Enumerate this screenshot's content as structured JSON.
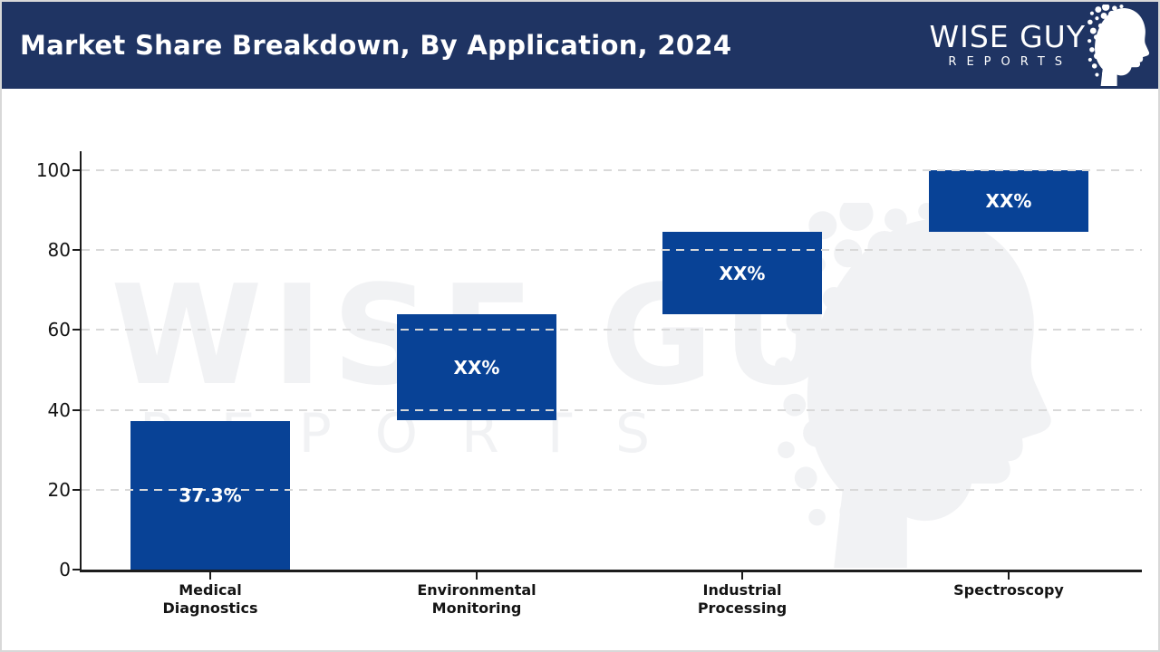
{
  "header": {
    "title": "Market Share Breakdown, By Application, 2024",
    "background": "#1f3463",
    "logo": {
      "name": "WISE GUY",
      "subtitle": "REPORTS"
    }
  },
  "watermark": {
    "name": "WISE GUY",
    "subtitle": "REPORTS"
  },
  "chart_data": {
    "type": "bar",
    "subtype": "waterfall",
    "title": "Market Share Breakdown, By Application, 2024",
    "categories": [
      [
        "Medical",
        "Diagnostics"
      ],
      [
        "Environmental",
        "Monitoring"
      ],
      [
        "Industrial",
        "Processing"
      ],
      [
        "Spectroscopy"
      ]
    ],
    "series": [
      {
        "name": "Market share (%)",
        "segments": [
          [
            0,
            37.3
          ],
          [
            37.3,
            64
          ],
          [
            64,
            84.5
          ],
          [
            84.5,
            100
          ]
        ],
        "labels": [
          "37.3%",
          "XX%",
          "XX%",
          "XX%"
        ]
      }
    ],
    "xlabel": "",
    "ylabel": "",
    "ylim": [
      0,
      100
    ],
    "yticks": [
      0,
      20,
      40,
      60,
      80,
      100
    ],
    "bar_color": "#084296",
    "grid": {
      "horizontal": true,
      "style": "dashed",
      "color": "#d9d9d9"
    },
    "legend": "none"
  }
}
